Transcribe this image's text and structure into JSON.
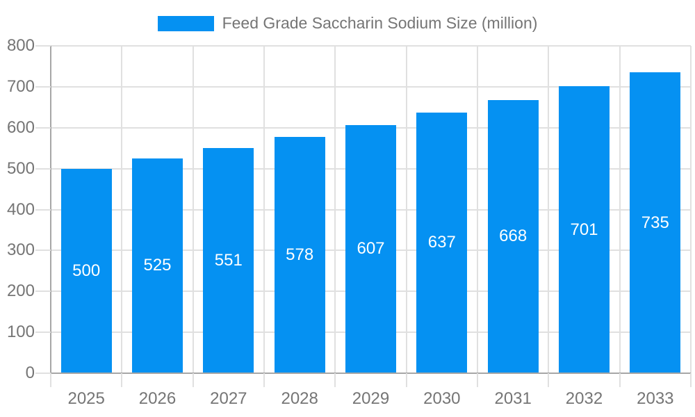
{
  "legend": {
    "label": "Feed Grade Saccharin Sodium Size (million)"
  },
  "colors": {
    "bar": "#0591f2",
    "axis_label": "#757575",
    "legend_text": "#757575",
    "axis_line": "#a6a6a6",
    "grid_line": "#e0e0e0",
    "value_label": "#ffffff",
    "background": "#ffffff"
  },
  "chart_data": {
    "type": "bar",
    "title": "",
    "series_name": "Feed Grade Saccharin Sodium Size (million)",
    "categories": [
      "2025",
      "2026",
      "2027",
      "2028",
      "2029",
      "2030",
      "2031",
      "2032",
      "2033"
    ],
    "values": [
      500,
      525,
      551,
      578,
      607,
      637,
      668,
      701,
      735
    ],
    "ylim": [
      0,
      800
    ],
    "y_tick_step": 100,
    "y_ticks": [
      "0",
      "100",
      "200",
      "300",
      "400",
      "500",
      "600",
      "700",
      "800"
    ],
    "grid": true,
    "legend_position": "top-center",
    "value_label_position": "inside-center"
  }
}
